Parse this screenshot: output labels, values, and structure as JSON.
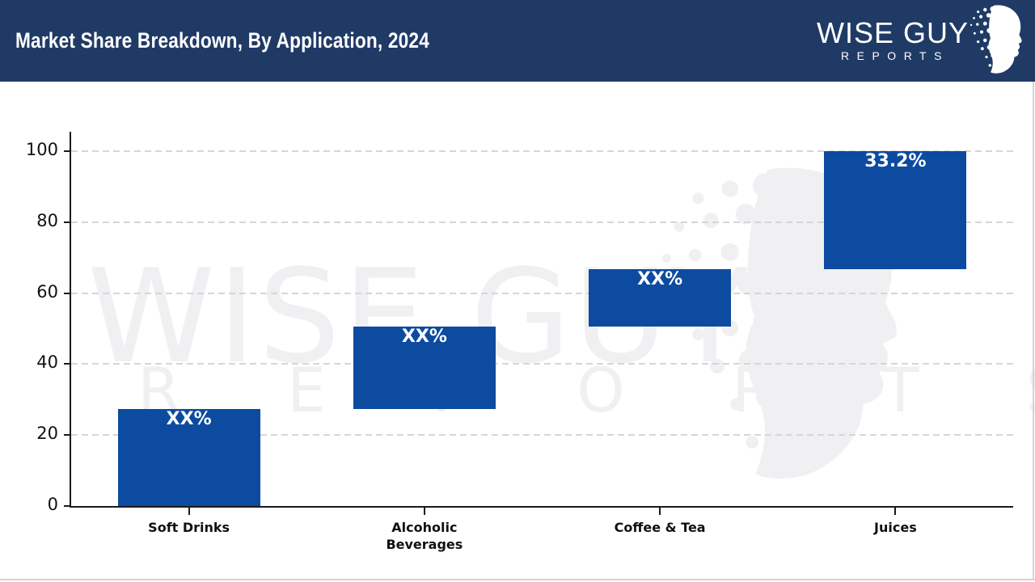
{
  "header": {
    "title": "Market Share Breakdown, By Application, 2024",
    "brand": {
      "name": "WISE GUY",
      "sub": "REPORTS"
    }
  },
  "watermark": {
    "line1": "WISE GUY",
    "line2": "R E P O R T S"
  },
  "chart_data": {
    "type": "bar",
    "subtype": "floating-segment waterfall of market share",
    "title": "Market Share Breakdown, By Application, 2024",
    "xlabel": "",
    "ylabel": "",
    "categories": [
      "Soft Drinks",
      "Alcoholic Beverages",
      "Coffee & Tea",
      "Juices"
    ],
    "segments": [
      {
        "category": "Soft Drinks",
        "start": 0,
        "end": 27.4,
        "share": 27.4,
        "label": "XX%"
      },
      {
        "category": "Alcoholic Beverages",
        "start": 27.4,
        "end": 50.6,
        "share": 23.2,
        "label": "XX%"
      },
      {
        "category": "Coffee & Tea",
        "start": 50.6,
        "end": 66.8,
        "share": 16.2,
        "label": "XX%"
      },
      {
        "category": "Juices",
        "start": 66.8,
        "end": 100,
        "share": 33.2,
        "label": "33.2%"
      }
    ],
    "yticks": [
      0,
      20,
      40,
      60,
      80,
      100
    ],
    "ylim": [
      0,
      100
    ],
    "grid": "horizontal dashed",
    "legend": "none"
  },
  "colors": {
    "header_bg": "#203a66",
    "bar": "#0c4ba0",
    "bar_label": "#ffffff",
    "gridline": "#d6d6d6",
    "axis": "#1a1a1a",
    "text": "#111111",
    "watermark": "#f0f0f3",
    "edge": "#d4d4d4"
  }
}
